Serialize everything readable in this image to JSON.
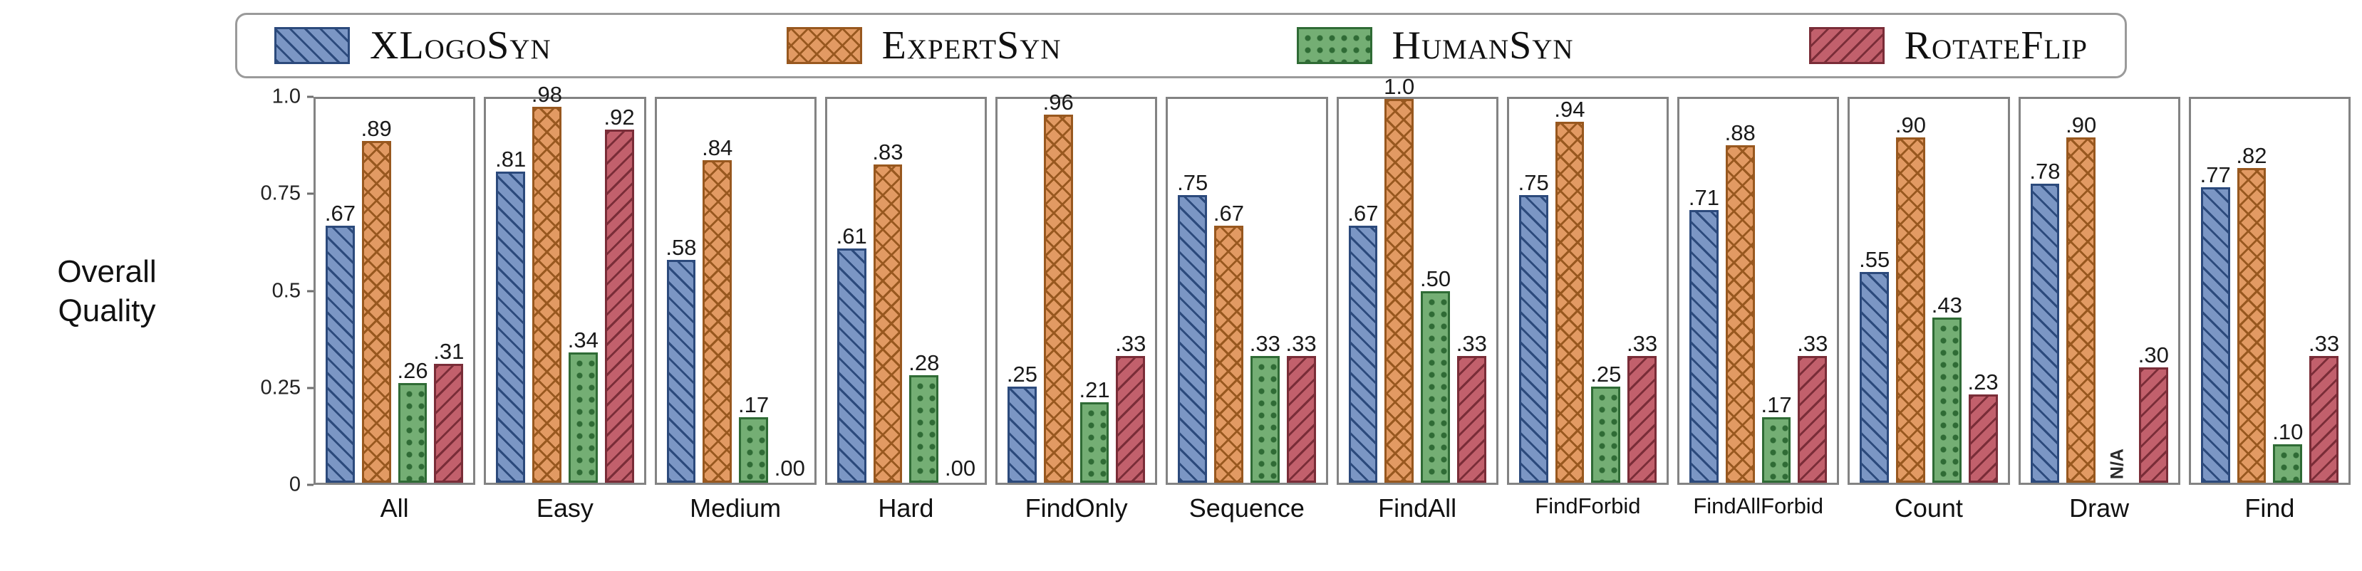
{
  "legend": {
    "border_color": "#9a9a9a",
    "items": [
      {
        "label": "XLogoSyn",
        "fill": "#7b96c4",
        "edge": "#2c4a7c",
        "hatch": "diagonal"
      },
      {
        "label": "ExpertSyn",
        "fill": "#e29a63",
        "edge": "#98581f",
        "hatch": "cross"
      },
      {
        "label": "HumanSyn",
        "fill": "#74ae74",
        "edge": "#2f6b35",
        "hatch": "dots"
      },
      {
        "label": "RotateFlip",
        "fill": "#c2606c",
        "edge": "#7a2d38",
        "hatch": "back-diagonal"
      }
    ]
  },
  "chart_data": {
    "type": "bar",
    "title": "",
    "ylabel": "Overall Quality",
    "ylabel_display": "Overall\nQuality",
    "ylim": [
      0,
      1.0
    ],
    "grid": false,
    "legend_position": "top",
    "na_label": "N/A",
    "yticks": [
      {
        "label": "1.0",
        "value": 1.0
      },
      {
        "label": "0.75",
        "value": 0.75
      },
      {
        "label": "0.5",
        "value": 0.5
      },
      {
        "label": "0.25",
        "value": 0.25
      },
      {
        "label": "0",
        "value": 0
      }
    ],
    "categories": [
      "All",
      "Easy",
      "Medium",
      "Hard",
      "FindOnly",
      "Sequence",
      "FindAll",
      "FindForbid",
      "FindAllForbid",
      "Count",
      "Draw",
      "Find"
    ],
    "series": [
      {
        "name": "XLogoSyn",
        "values": [
          0.67,
          0.81,
          0.58,
          0.61,
          0.25,
          0.75,
          0.67,
          0.75,
          0.71,
          0.55,
          0.78,
          0.77
        ],
        "labels": [
          ".67",
          ".81",
          ".58",
          ".61",
          ".25",
          ".75",
          ".67",
          ".75",
          ".71",
          ".55",
          ".78",
          ".77"
        ]
      },
      {
        "name": "ExpertSyn",
        "values": [
          0.89,
          0.98,
          0.84,
          0.83,
          0.96,
          0.67,
          1.0,
          0.94,
          0.88,
          0.9,
          0.9,
          0.82
        ],
        "labels": [
          ".89",
          ".98",
          ".84",
          ".83",
          ".96",
          ".67",
          "1.0",
          ".94",
          ".88",
          ".90",
          ".90",
          ".82"
        ]
      },
      {
        "name": "HumanSyn",
        "values": [
          0.26,
          0.34,
          0.17,
          0.28,
          0.21,
          0.33,
          0.5,
          0.25,
          0.17,
          0.43,
          null,
          0.1
        ],
        "labels": [
          ".26",
          ".34",
          ".17",
          ".28",
          ".21",
          ".33",
          ".50",
          ".25",
          ".17",
          ".43",
          "N/A",
          ".10"
        ]
      },
      {
        "name": "RotateFlip",
        "values": [
          0.31,
          0.92,
          0.0,
          0.0,
          0.33,
          0.33,
          0.33,
          0.33,
          0.33,
          0.23,
          0.3,
          0.33
        ],
        "labels": [
          ".31",
          ".92",
          ".00",
          ".00",
          ".33",
          ".33",
          ".33",
          ".33",
          ".33",
          ".23",
          ".30",
          ".33"
        ]
      }
    ]
  }
}
